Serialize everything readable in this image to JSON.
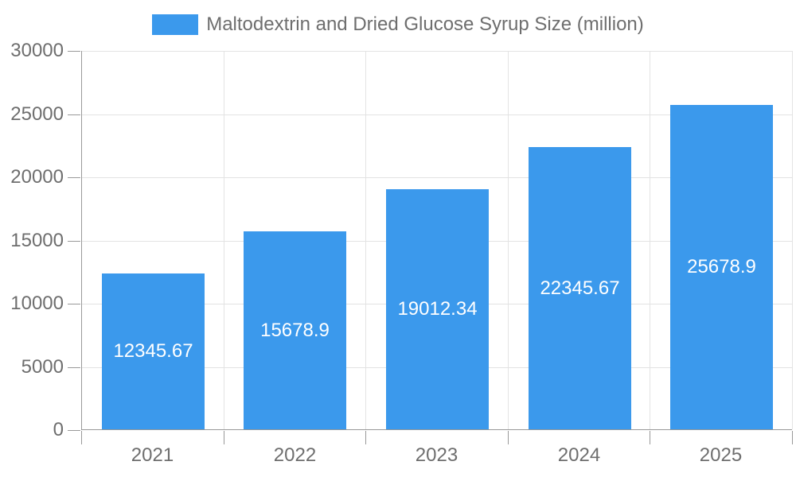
{
  "legend": {
    "label": "Maltodextrin and Dried Glucose Syrup Size (million)"
  },
  "chart_data": {
    "type": "bar",
    "title": "Maltodextrin and Dried Glucose Syrup Size (million)",
    "categories": [
      "2021",
      "2022",
      "2023",
      "2024",
      "2025"
    ],
    "values": [
      12345.67,
      15678.9,
      19012.34,
      22345.67,
      25678.9
    ],
    "value_labels": [
      "12345.67",
      "15678.9",
      "19012.34",
      "22345.67",
      "25678.9"
    ],
    "xlabel": "",
    "ylabel": "",
    "ylim": [
      0,
      30000
    ],
    "yticks": [
      0,
      5000,
      10000,
      15000,
      20000,
      25000,
      30000
    ],
    "ytick_labels": [
      "0",
      "5000",
      "10000",
      "15000",
      "20000",
      "25000",
      "30000"
    ],
    "grid": true,
    "legend_position": "top",
    "bar_color": "#3B99EC",
    "value_label_color": "#FFFFFF"
  },
  "colors": {
    "bar": "#3B99EC",
    "axis_line": "#999999",
    "grid_line": "#E3E3E3",
    "text": "#6E6E6E",
    "value_text": "#FFFFFF",
    "background": "#FFFFFF"
  }
}
